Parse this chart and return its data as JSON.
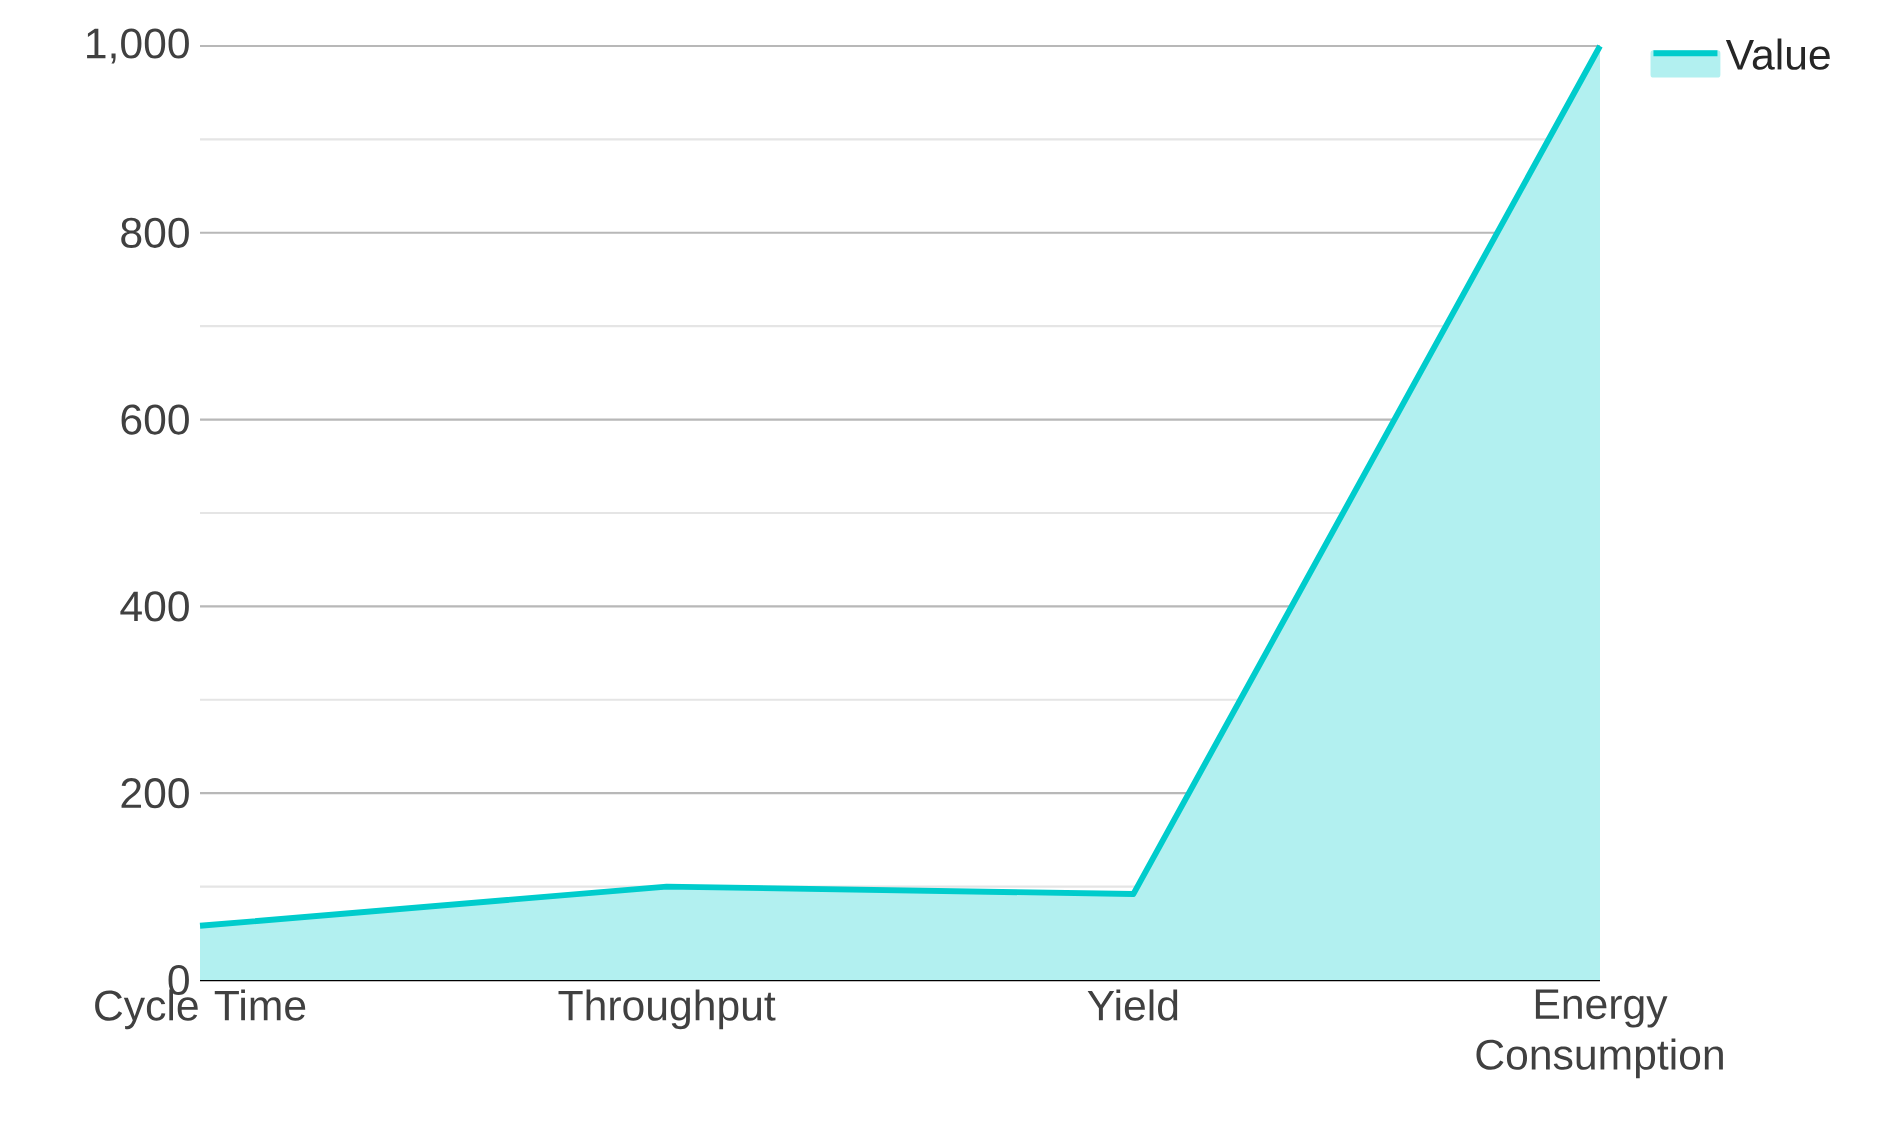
{
  "chart_data": {
    "type": "area",
    "categories": [
      "Cycle Time",
      "Throughput",
      "Yield",
      "Energy Consumption"
    ],
    "series": [
      {
        "name": "Value",
        "color": "#00cccc",
        "values": [
          58,
          100,
          92,
          1000
        ]
      }
    ],
    "ylim": [
      0,
      1000
    ],
    "yticks": [
      0,
      200,
      400,
      600,
      800,
      {
        "value": 1000,
        "label": "1,000"
      }
    ],
    "grid": "y",
    "legend": "top right"
  }
}
